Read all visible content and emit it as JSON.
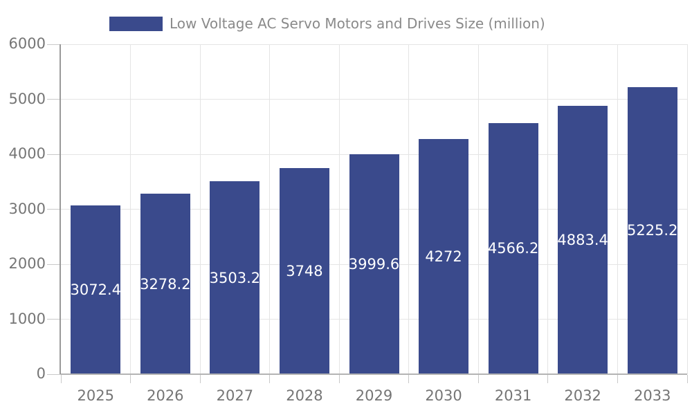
{
  "chart_data": {
    "type": "bar",
    "title": "Low Voltage AC Servo Motors and Drives Size (million)",
    "legend": [
      "Low Voltage AC Servo Motors and Drives Size (million)"
    ],
    "legend_position": "top",
    "categories": [
      "2025",
      "2026",
      "2027",
      "2028",
      "2029",
      "2030",
      "2031",
      "2032",
      "2033"
    ],
    "series": [
      {
        "name": "Low Voltage AC Servo Motors and Drives Size (million)",
        "values": [
          3072.4,
          3278.2,
          3503.2,
          3748,
          3999.6,
          4272,
          4566.2,
          4883.4,
          5225.2
        ]
      }
    ],
    "data_labels": [
      "3072.4",
      "3278.2",
      "3503.2",
      "3748",
      "3999.6",
      "4272",
      "4566.2",
      "4883.4",
      "5225.2"
    ],
    "xlabel": "",
    "ylabel": "",
    "ylim": [
      0,
      6000
    ],
    "yticks": [
      0,
      1000,
      2000,
      3000,
      4000,
      5000,
      6000
    ],
    "grid": true,
    "data_label_position": "inside-middle"
  },
  "colors": {
    "bar": "#3A4A8C",
    "bar_label": "#FFFFFF",
    "grid": "#E4E4E4",
    "y_axis": "#999999",
    "x_axis": "#B3B3B3",
    "tick": "#C9C9C9",
    "axis_text": "#757575",
    "legend_text": "#8A8A8A",
    "background": "#FFFFFF"
  }
}
